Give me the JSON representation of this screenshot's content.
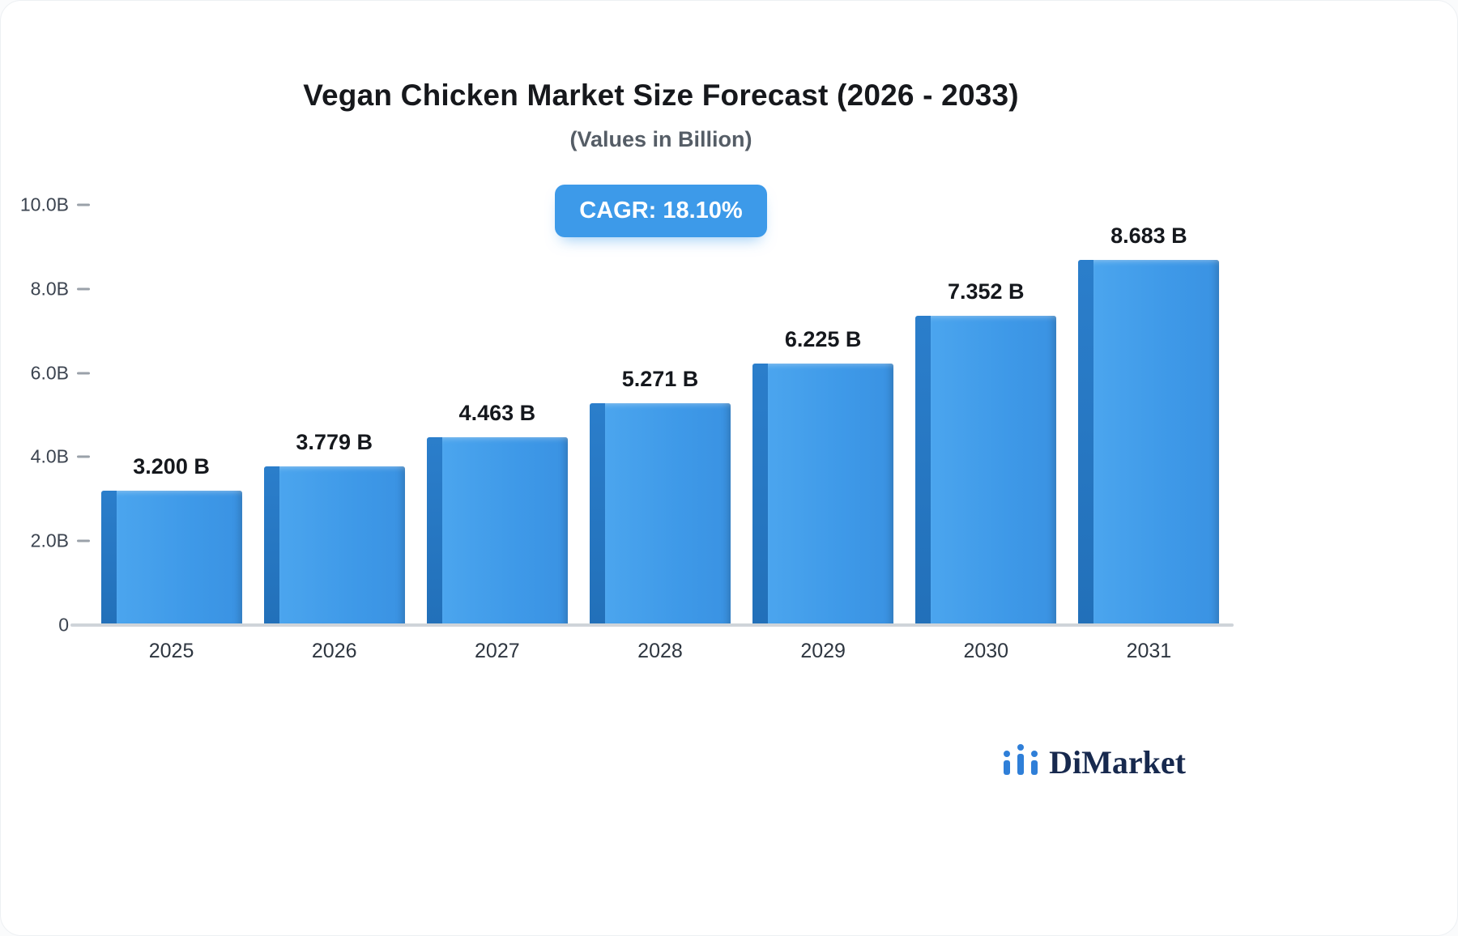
{
  "header": {
    "title": "Vegan Chicken Market Size Forecast (2026 - 2033)",
    "subtitle": "(Values in Billion)",
    "cagr_badge": "CAGR: 18.10%"
  },
  "chart_data": {
    "type": "bar",
    "categories": [
      "2025",
      "2026",
      "2027",
      "2028",
      "2029",
      "2030",
      "2031"
    ],
    "values": [
      3.2,
      3.779,
      4.463,
      5.271,
      6.225,
      7.352,
      8.683
    ],
    "value_labels": [
      "3.200 B",
      "3.779 B",
      "4.463 B",
      "5.271 B",
      "6.225 B",
      "7.352 B",
      "8.683 B"
    ],
    "title": "Vegan Chicken Market Size Forecast (2026 - 2033)",
    "xlabel": "",
    "ylabel": "",
    "ylim": [
      0,
      10
    ],
    "yticks_top_to_bottom": [
      "10.0B",
      "8.0B",
      "6.0B",
      "4.0B",
      "2.0B",
      "0"
    ],
    "grid": false,
    "legend": "none",
    "bar_color": "#3e99e8",
    "bar_side_color": "#2270b9",
    "badge_color": "#3d9ae9"
  },
  "logo": {
    "text": "DiMarket",
    "icon": "bar-chart-dots-icon",
    "icon_color": "#2f7fd8",
    "text_color": "#17294e"
  }
}
